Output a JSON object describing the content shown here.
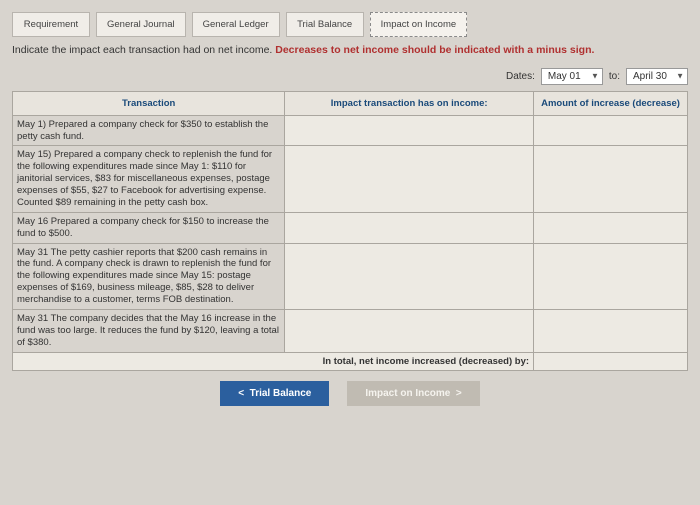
{
  "tabs": [
    {
      "label": "Requirement"
    },
    {
      "label": "General Journal"
    },
    {
      "label": "General Ledger"
    },
    {
      "label": "Trial Balance"
    },
    {
      "label": "Impact on Income",
      "selected": true
    }
  ],
  "instruction_plain": "Indicate the impact each transaction had on net income. ",
  "instruction_red": "Decreases to net income should be indicated with a minus sign.",
  "dates": {
    "label": "Dates:",
    "from_value": "May 01",
    "to_label": "to:",
    "to_value": "April 30"
  },
  "columns": {
    "transaction": "Transaction",
    "impact": "Impact transaction has on income:",
    "amount": "Amount of increase (decrease)"
  },
  "rows": [
    {
      "txn": "May 1) Prepared a company check for $350 to establish the petty cash fund."
    },
    {
      "txn": "May 15) Prepared a company check to replenish the fund for the following expenditures made since May 1: $110 for janitorial services, $83 for miscellaneous expenses, postage expenses of $55, $27 to Facebook for advertising expense. Counted $89 remaining in the petty cash box."
    },
    {
      "txn": "May 16 Prepared a company check for $150 to increase the fund to $500."
    },
    {
      "txn": "May 31 The petty cashier reports that $200 cash remains in the fund. A company check is drawn to replenish the fund for the following expenditures made since May 15: postage expenses of $169, business mileage, $85, $28 to deliver merchandise to a customer, terms FOB destination."
    },
    {
      "txn": "May 31 The company decides that the May 16 increase in the fund was too large. It reduces the fund by $120, leaving a total of $380."
    }
  ],
  "total_label": "In total, net income increased (decreased) by:",
  "nav": {
    "prev": "Trial Balance",
    "next": "Impact on Income"
  },
  "colors": {
    "page_bg": "#d8d4ce",
    "tab_bg": "#f0ede8",
    "header_text": "#1a4a7a",
    "red_text": "#b03030",
    "highlight": "#faf7a8",
    "nav_prev_bg": "#2b5f9e",
    "nav_next_bg": "#c0bbb2"
  }
}
